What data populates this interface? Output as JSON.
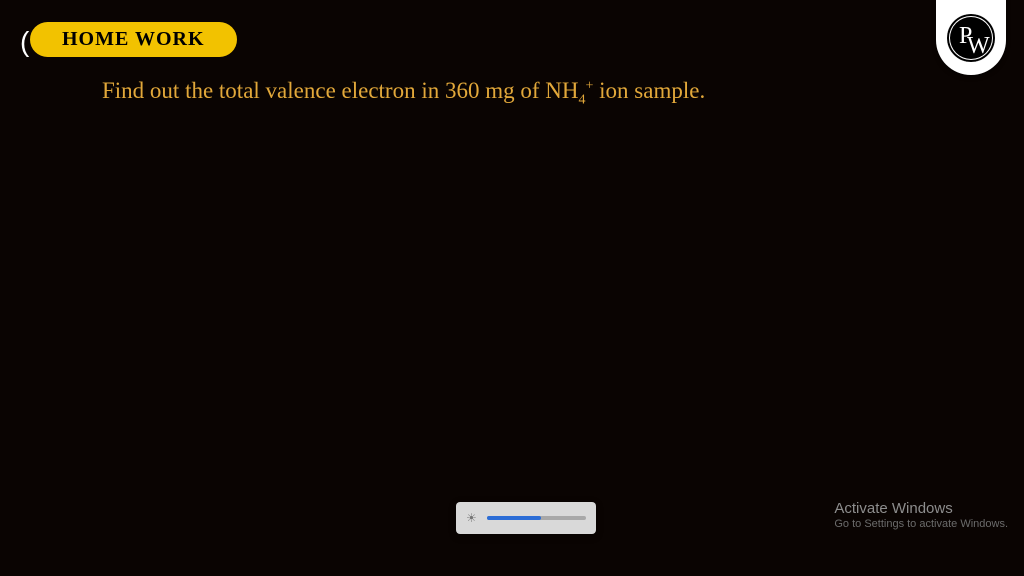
{
  "badge": {
    "label": "HOME WORK"
  },
  "question": {
    "pre": "Find out the total valence electron in 360 mg of NH",
    "sub": "4",
    "sup": "+",
    "post": " ion sample."
  },
  "logo": {
    "p": "P",
    "w": "W"
  },
  "brightness": {
    "fill_percent": 55
  },
  "watermark": {
    "title": "Activate Windows",
    "sub": "Go to Settings to activate Windows."
  },
  "colors": {
    "background": "#0a0402",
    "badge_bg": "#f2c200",
    "badge_text": "#000000",
    "question_text": "#e2a83a",
    "osd_bg": "#d9d9d9",
    "osd_track": "#a8a8a8",
    "osd_fill": "#2c6dd6",
    "watermark_title": "#8d8d8d",
    "watermark_sub": "#6b6b6b"
  }
}
